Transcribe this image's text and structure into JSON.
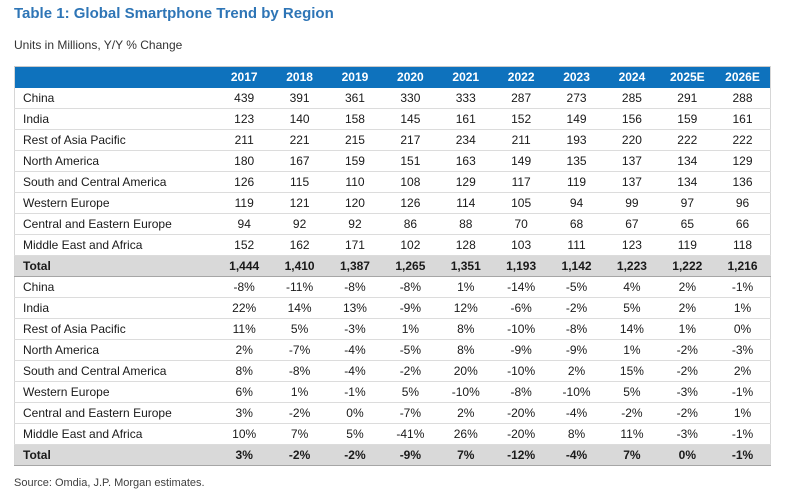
{
  "colors": {
    "title_blue": "#2e75b6",
    "header_bg": "#0e72bd",
    "header_text": "#ffffff",
    "total_row_bg": "#d9d9d9",
    "row_border": "#dcdcdc",
    "total_row_border": "#a6a6a6",
    "body_text": "#1a1a1a"
  },
  "chart_data": {
    "type": "table",
    "title": "Table 1: Global Smartphone Trend by Region",
    "subtitle": "Units in Millions, Y/Y % Change",
    "source": "Source: Omdia, J.P. Morgan estimates.",
    "columns": [
      "",
      "2017",
      "2018",
      "2019",
      "2020",
      "2021",
      "2022",
      "2023",
      "2024",
      "2025E",
      "2026E"
    ],
    "sections": [
      {
        "name": "units_in_millions",
        "rows": [
          {
            "label": "China",
            "values": [
              "439",
              "391",
              "361",
              "330",
              "333",
              "287",
              "273",
              "285",
              "291",
              "288"
            ]
          },
          {
            "label": "India",
            "values": [
              "123",
              "140",
              "158",
              "145",
              "161",
              "152",
              "149",
              "156",
              "159",
              "161"
            ]
          },
          {
            "label": "Rest of Asia Pacific",
            "values": [
              "211",
              "221",
              "215",
              "217",
              "234",
              "211",
              "193",
              "220",
              "222",
              "222"
            ]
          },
          {
            "label": "North America",
            "values": [
              "180",
              "167",
              "159",
              "151",
              "163",
              "149",
              "135",
              "137",
              "134",
              "129"
            ]
          },
          {
            "label": "South and Central America",
            "values": [
              "126",
              "115",
              "110",
              "108",
              "129",
              "117",
              "119",
              "137",
              "134",
              "136"
            ]
          },
          {
            "label": "Western Europe",
            "values": [
              "119",
              "121",
              "120",
              "126",
              "114",
              "105",
              "94",
              "99",
              "97",
              "96"
            ]
          },
          {
            "label": "Central and Eastern Europe",
            "values": [
              "94",
              "92",
              "92",
              "86",
              "88",
              "70",
              "68",
              "67",
              "65",
              "66"
            ]
          },
          {
            "label": "Middle East and Africa",
            "values": [
              "152",
              "162",
              "171",
              "102",
              "128",
              "103",
              "111",
              "123",
              "119",
              "118"
            ]
          }
        ],
        "total": {
          "label": "Total",
          "values": [
            "1,444",
            "1,410",
            "1,387",
            "1,265",
            "1,351",
            "1,193",
            "1,142",
            "1,223",
            "1,222",
            "1,216"
          ]
        }
      },
      {
        "name": "yoy_percent_change",
        "rows": [
          {
            "label": "China",
            "values": [
              "-8%",
              "-11%",
              "-8%",
              "-8%",
              "1%",
              "-14%",
              "-5%",
              "4%",
              "2%",
              "-1%"
            ]
          },
          {
            "label": "India",
            "values": [
              "22%",
              "14%",
              "13%",
              "-9%",
              "12%",
              "-6%",
              "-2%",
              "5%",
              "2%",
              "1%"
            ]
          },
          {
            "label": "Rest of Asia Pacific",
            "values": [
              "11%",
              "5%",
              "-3%",
              "1%",
              "8%",
              "-10%",
              "-8%",
              "14%",
              "1%",
              "0%"
            ]
          },
          {
            "label": "North America",
            "values": [
              "2%",
              "-7%",
              "-4%",
              "-5%",
              "8%",
              "-9%",
              "-9%",
              "1%",
              "-2%",
              "-3%"
            ]
          },
          {
            "label": "South and Central America",
            "values": [
              "8%",
              "-8%",
              "-4%",
              "-2%",
              "20%",
              "-10%",
              "2%",
              "15%",
              "-2%",
              "2%"
            ]
          },
          {
            "label": "Western Europe",
            "values": [
              "6%",
              "1%",
              "-1%",
              "5%",
              "-10%",
              "-8%",
              "-10%",
              "5%",
              "-3%",
              "-1%"
            ]
          },
          {
            "label": "Central and Eastern Europe",
            "values": [
              "3%",
              "-2%",
              "0%",
              "-7%",
              "2%",
              "-20%",
              "-4%",
              "-2%",
              "-2%",
              "1%"
            ]
          },
          {
            "label": "Middle East and Africa",
            "values": [
              "10%",
              "7%",
              "5%",
              "-41%",
              "26%",
              "-20%",
              "8%",
              "11%",
              "-3%",
              "-1%"
            ]
          }
        ],
        "total": {
          "label": "Total",
          "values": [
            "3%",
            "-2%",
            "-2%",
            "-9%",
            "7%",
            "-12%",
            "-4%",
            "7%",
            "0%",
            "-1%"
          ]
        }
      }
    ]
  }
}
